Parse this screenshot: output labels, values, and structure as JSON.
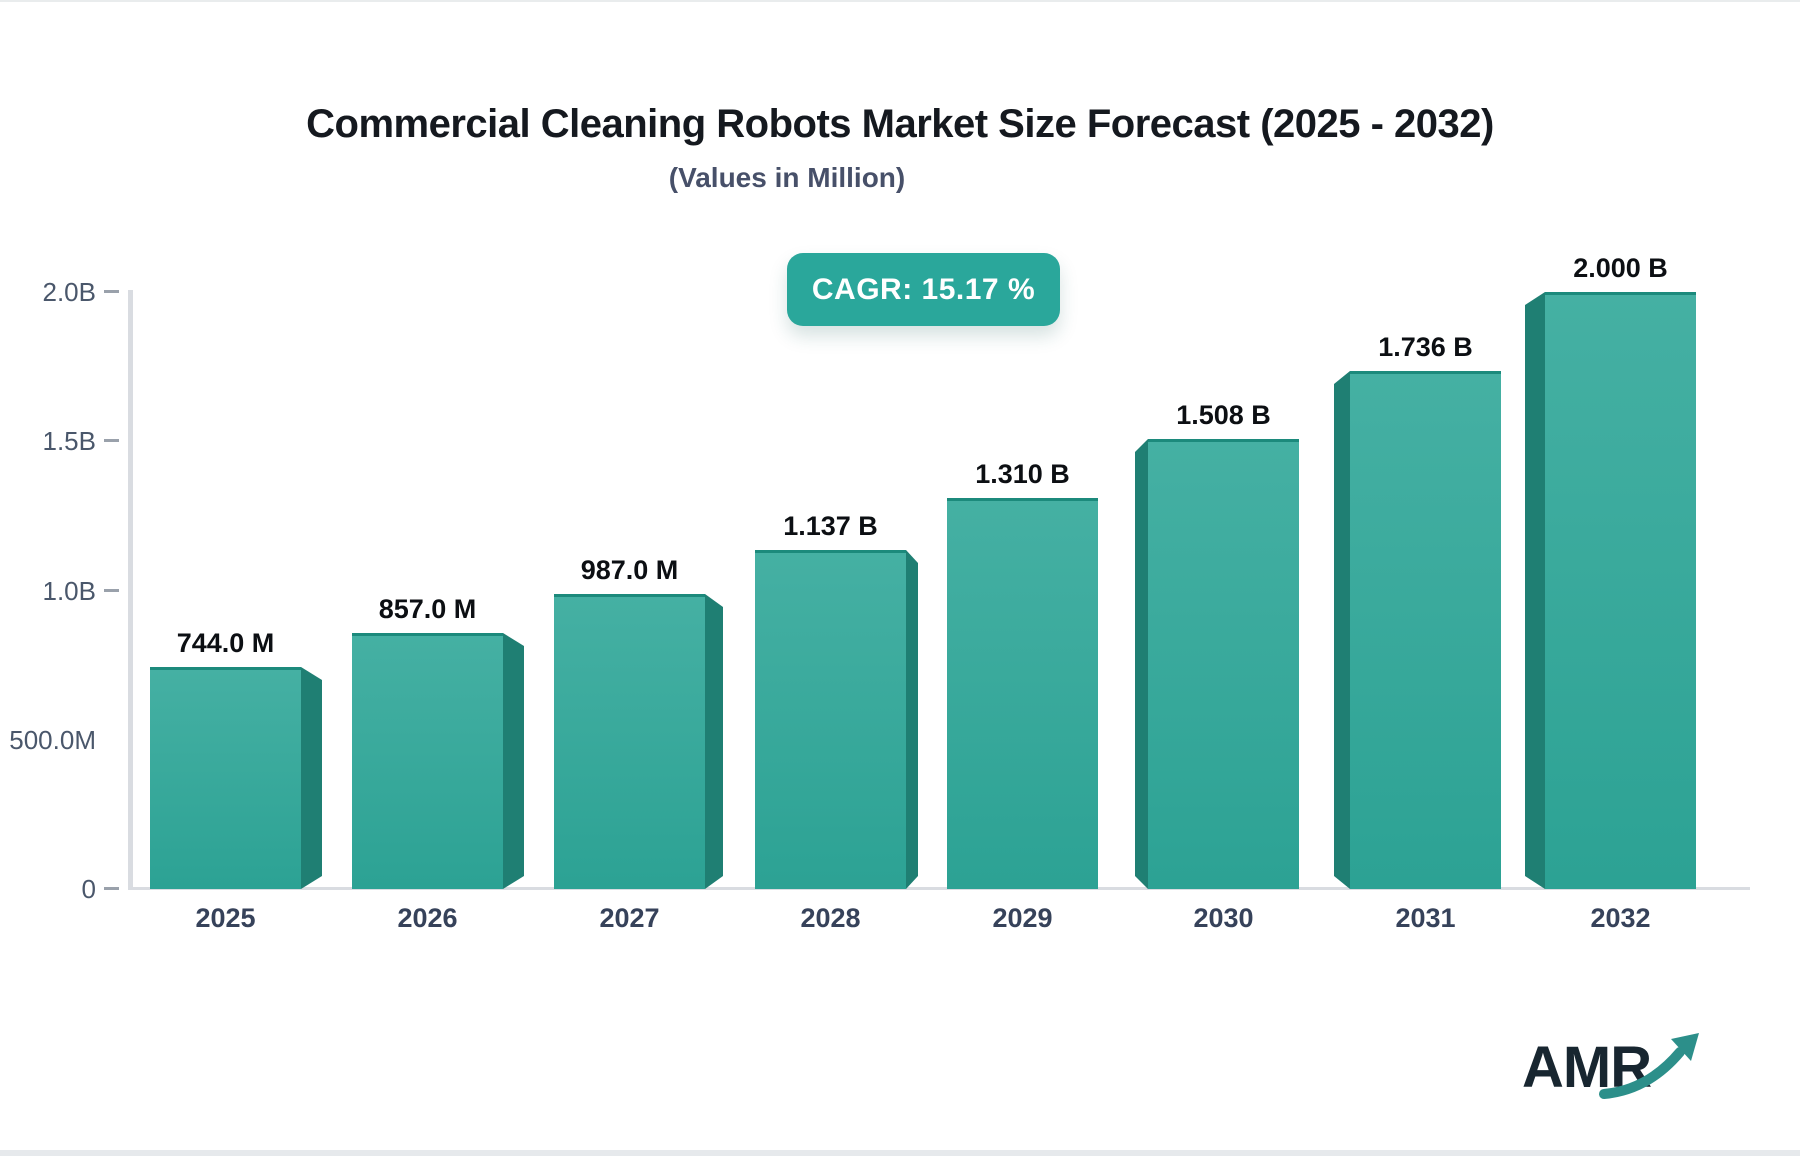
{
  "header": {
    "title": "Commercial Cleaning Robots Market Size Forecast (2025 - 2032)",
    "subtitle": "(Values in Million)",
    "cagr_badge": "CAGR: 15.17 %"
  },
  "chart_data": {
    "type": "bar",
    "title": "Commercial Cleaning Robots Market Size Forecast (2025 - 2032)",
    "subtitle": "(Values in Million)",
    "unit": "Million USD",
    "categories": [
      "2025",
      "2026",
      "2027",
      "2028",
      "2029",
      "2030",
      "2031",
      "2032"
    ],
    "values_million": [
      744,
      857,
      987,
      1137,
      1310,
      1508,
      1736,
      2000
    ],
    "bar_labels": [
      "744.0 M",
      "857.0 M",
      "987.0 M",
      "1.137 B",
      "1.310 B",
      "1.508 B",
      "1.736 B",
      "2.000 B"
    ],
    "cagr_percent": 15.17,
    "ylim_million": [
      0,
      2000
    ],
    "y_ticks": [
      {
        "label": "2.0B",
        "value_million": 2000,
        "dash": true
      },
      {
        "label": "1.5B",
        "value_million": 1500,
        "dash": true
      },
      {
        "label": "1.0B",
        "value_million": 1000,
        "dash": true
      },
      {
        "label": "500.0M",
        "value_million": 500,
        "dash": false
      },
      {
        "label": "0",
        "value_million": 0,
        "dash": true
      }
    ],
    "grid": false,
    "legend": "none",
    "bar_face_gradient": [
      "#45b0a3",
      "#2ca294"
    ],
    "bar_top_edge_color": "#1c8a7c",
    "bar_side_color": "#1f7f73",
    "accent_color": "#2aa79b",
    "axis_line_color": "#d9dce1"
  },
  "logo": {
    "text": "AMR",
    "text_color": "#182630",
    "arrow_color": "#2c8f8a"
  }
}
